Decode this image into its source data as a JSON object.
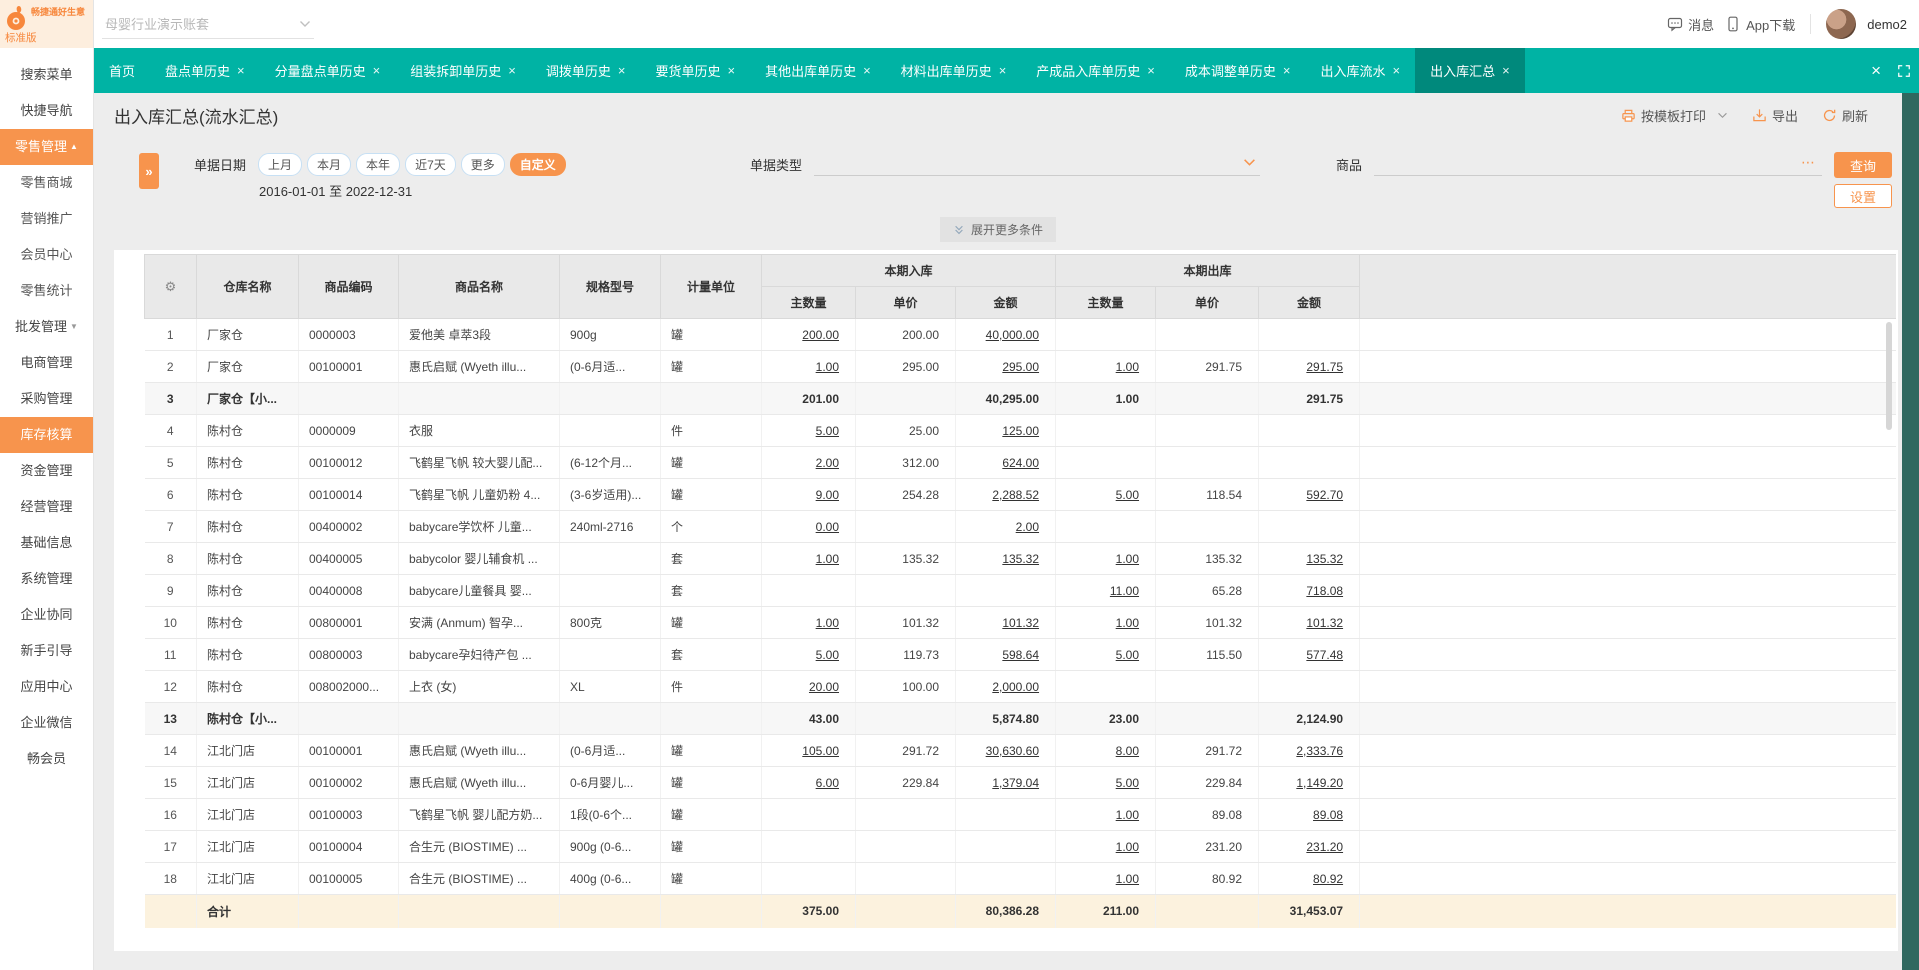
{
  "brand": {
    "name": "畅捷通好生意",
    "edition": "标准版"
  },
  "topbar": {
    "account_set": "母婴行业演示账套",
    "messages_label": "消息",
    "app_download_label": "App下载",
    "username": "demo2"
  },
  "tabs": [
    {
      "label": "首页",
      "closable": false,
      "active": false
    },
    {
      "label": "盘点单历史",
      "closable": true,
      "active": false
    },
    {
      "label": "分量盘点单历史",
      "closable": true,
      "active": false
    },
    {
      "label": "组装拆卸单历史",
      "closable": true,
      "active": false
    },
    {
      "label": "调拨单历史",
      "closable": true,
      "active": false
    },
    {
      "label": "要货单历史",
      "closable": true,
      "active": false
    },
    {
      "label": "其他出库单历史",
      "closable": true,
      "active": false
    },
    {
      "label": "材料出库单历史",
      "closable": true,
      "active": false
    },
    {
      "label": "产成品入库单历史",
      "closable": true,
      "active": false
    },
    {
      "label": "成本调整单历史",
      "closable": true,
      "active": false
    },
    {
      "label": "出入库流水",
      "closable": true,
      "active": false
    },
    {
      "label": "出入库汇总",
      "closable": true,
      "active": true
    }
  ],
  "sidebar": {
    "items": [
      {
        "label": "搜索菜单",
        "style": "item",
        "arrow": ""
      },
      {
        "label": "快捷导航",
        "style": "item",
        "arrow": ""
      },
      {
        "label": "零售管理",
        "style": "active",
        "arrow": "up"
      },
      {
        "label": "零售商城",
        "style": "sub",
        "arrow": ""
      },
      {
        "label": "营销推广",
        "style": "sub",
        "arrow": ""
      },
      {
        "label": "会员中心",
        "style": "sub",
        "arrow": ""
      },
      {
        "label": "零售统计",
        "style": "sub",
        "arrow": ""
      },
      {
        "label": "批发管理",
        "style": "item",
        "arrow": "down"
      },
      {
        "label": "电商管理",
        "style": "item",
        "arrow": ""
      },
      {
        "label": "采购管理",
        "style": "item",
        "arrow": ""
      },
      {
        "label": "库存核算",
        "style": "active",
        "arrow": ""
      },
      {
        "label": "资金管理",
        "style": "item",
        "arrow": ""
      },
      {
        "label": "经营管理",
        "style": "item",
        "arrow": ""
      },
      {
        "label": "基础信息",
        "style": "item",
        "arrow": ""
      },
      {
        "label": "系统管理",
        "style": "item",
        "arrow": ""
      },
      {
        "label": "企业协同",
        "style": "item",
        "arrow": ""
      },
      {
        "label": "新手引导",
        "style": "item",
        "arrow": ""
      },
      {
        "label": "应用中心",
        "style": "item",
        "arrow": ""
      },
      {
        "label": "企业微信",
        "style": "item",
        "arrow": ""
      },
      {
        "label": "畅会员",
        "style": "item",
        "arrow": ""
      }
    ]
  },
  "page": {
    "title": "出入库汇总(流水汇总)",
    "toolbar": {
      "print": "按模板打印",
      "export": "导出",
      "refresh": "刷新"
    }
  },
  "filters": {
    "date_label": "单据日期",
    "date_quick": [
      "上月",
      "本月",
      "本年",
      "近7天",
      "更多"
    ],
    "date_custom": "自定义",
    "date_range": "2016-01-01 至 2022-12-31",
    "doc_type_label": "单据类型",
    "product_label": "商品",
    "query_button": "查询",
    "settings_button": "设置",
    "expand_more": "展开更多条件"
  },
  "table": {
    "columns": [
      "仓库名称",
      "商品编码",
      "商品名称",
      "规格型号",
      "计量单位"
    ],
    "group_in": "本期入库",
    "group_out": "本期出库",
    "sub_columns": [
      "主数量",
      "单价",
      "金额"
    ],
    "rows": [
      {
        "no": "1",
        "warehouse": "厂家仓",
        "code": "0000003",
        "name": "爱他美 卓萃3段",
        "spec": "900g",
        "unit": "罐",
        "in_qty": "200.00",
        "in_price": "200.00",
        "in_amt": "40,000.00",
        "out_qty": "",
        "out_price": "",
        "out_amt": "",
        "row_type": "data"
      },
      {
        "no": "2",
        "warehouse": "厂家仓",
        "code": "00100001",
        "name": "惠氏启赋 (Wyeth illu...",
        "spec": "(0-6月适...",
        "unit": "罐",
        "in_qty": "1.00",
        "in_price": "295.00",
        "in_amt": "295.00",
        "out_qty": "1.00",
        "out_price": "291.75",
        "out_amt": "291.75",
        "row_type": "data"
      },
      {
        "no": "3",
        "warehouse": "厂家仓【小...",
        "code": "",
        "name": "",
        "spec": "",
        "unit": "",
        "in_qty": "201.00",
        "in_price": "",
        "in_amt": "40,295.00",
        "out_qty": "1.00",
        "out_price": "",
        "out_amt": "291.75",
        "row_type": "subtotal"
      },
      {
        "no": "4",
        "warehouse": "陈村仓",
        "code": "0000009",
        "name": "衣服",
        "spec": "",
        "unit": "件",
        "in_qty": "5.00",
        "in_price": "25.00",
        "in_amt": "125.00",
        "out_qty": "",
        "out_price": "",
        "out_amt": "",
        "row_type": "data"
      },
      {
        "no": "5",
        "warehouse": "陈村仓",
        "code": "00100012",
        "name": "飞鹤星飞帆 较大婴儿配...",
        "spec": "(6-12个月...",
        "unit": "罐",
        "in_qty": "2.00",
        "in_price": "312.00",
        "in_amt": "624.00",
        "out_qty": "",
        "out_price": "",
        "out_amt": "",
        "row_type": "data"
      },
      {
        "no": "6",
        "warehouse": "陈村仓",
        "code": "00100014",
        "name": "飞鹤星飞帆 儿童奶粉 4...",
        "spec": "(3-6岁适用)...",
        "unit": "罐",
        "in_qty": "9.00",
        "in_price": "254.28",
        "in_amt": "2,288.52",
        "out_qty": "5.00",
        "out_price": "118.54",
        "out_amt": "592.70",
        "row_type": "data"
      },
      {
        "no": "7",
        "warehouse": "陈村仓",
        "code": "00400002",
        "name": "babycare学饮杯 儿童...",
        "spec": "240ml-2716",
        "unit": "个",
        "in_qty": "0.00",
        "in_price": "",
        "in_amt": "2.00",
        "out_qty": "",
        "out_price": "",
        "out_amt": "",
        "row_type": "data"
      },
      {
        "no": "8",
        "warehouse": "陈村仓",
        "code": "00400005",
        "name": "babycolor 婴儿辅食机 ...",
        "spec": "",
        "unit": "套",
        "in_qty": "1.00",
        "in_price": "135.32",
        "in_amt": "135.32",
        "out_qty": "1.00",
        "out_price": "135.32",
        "out_amt": "135.32",
        "row_type": "data"
      },
      {
        "no": "9",
        "warehouse": "陈村仓",
        "code": "00400008",
        "name": "babycare儿童餐具 婴...",
        "spec": "",
        "unit": "套",
        "in_qty": "",
        "in_price": "",
        "in_amt": "",
        "out_qty": "11.00",
        "out_price": "65.28",
        "out_amt": "718.08",
        "row_type": "data"
      },
      {
        "no": "10",
        "warehouse": "陈村仓",
        "code": "00800001",
        "name": "安满 (Anmum) 智孕...",
        "spec": "800克",
        "unit": "罐",
        "in_qty": "1.00",
        "in_price": "101.32",
        "in_amt": "101.32",
        "out_qty": "1.00",
        "out_price": "101.32",
        "out_amt": "101.32",
        "row_type": "data"
      },
      {
        "no": "11",
        "warehouse": "陈村仓",
        "code": "00800003",
        "name": "babycare孕妇待产包 ...",
        "spec": "",
        "unit": "套",
        "in_qty": "5.00",
        "in_price": "119.73",
        "in_amt": "598.64",
        "out_qty": "5.00",
        "out_price": "115.50",
        "out_amt": "577.48",
        "row_type": "data"
      },
      {
        "no": "12",
        "warehouse": "陈村仓",
        "code": "008002000...",
        "name": "上衣 (女)",
        "spec": "XL",
        "unit": "件",
        "in_qty": "20.00",
        "in_price": "100.00",
        "in_amt": "2,000.00",
        "out_qty": "",
        "out_price": "",
        "out_amt": "",
        "row_type": "data"
      },
      {
        "no": "13",
        "warehouse": "陈村仓【小...",
        "code": "",
        "name": "",
        "spec": "",
        "unit": "",
        "in_qty": "43.00",
        "in_price": "",
        "in_amt": "5,874.80",
        "out_qty": "23.00",
        "out_price": "",
        "out_amt": "2,124.90",
        "row_type": "subtotal"
      },
      {
        "no": "14",
        "warehouse": "江北门店",
        "code": "00100001",
        "name": "惠氏启赋 (Wyeth illu...",
        "spec": "(0-6月适...",
        "unit": "罐",
        "in_qty": "105.00",
        "in_price": "291.72",
        "in_amt": "30,630.60",
        "out_qty": "8.00",
        "out_price": "291.72",
        "out_amt": "2,333.76",
        "row_type": "data"
      },
      {
        "no": "15",
        "warehouse": "江北门店",
        "code": "00100002",
        "name": "惠氏启赋 (Wyeth illu...",
        "spec": "0-6月婴儿...",
        "unit": "罐",
        "in_qty": "6.00",
        "in_price": "229.84",
        "in_amt": "1,379.04",
        "out_qty": "5.00",
        "out_price": "229.84",
        "out_amt": "1,149.20",
        "row_type": "data"
      },
      {
        "no": "16",
        "warehouse": "江北门店",
        "code": "00100003",
        "name": "飞鹤星飞帆 婴儿配方奶...",
        "spec": "1段(0-6个...",
        "unit": "罐",
        "in_qty": "",
        "in_price": "",
        "in_amt": "",
        "out_qty": "1.00",
        "out_price": "89.08",
        "out_amt": "89.08",
        "row_type": "data"
      },
      {
        "no": "17",
        "warehouse": "江北门店",
        "code": "00100004",
        "name": "合生元 (BIOSTIME) ...",
        "spec": "900g (0-6...",
        "unit": "罐",
        "in_qty": "",
        "in_price": "",
        "in_amt": "",
        "out_qty": "1.00",
        "out_price": "231.20",
        "out_amt": "231.20",
        "row_type": "data"
      },
      {
        "no": "18",
        "warehouse": "江北门店",
        "code": "00100005",
        "name": "合生元 (BIOSTIME) ...",
        "spec": "400g (0-6...",
        "unit": "罐",
        "in_qty": "",
        "in_price": "",
        "in_amt": "",
        "out_qty": "1.00",
        "out_price": "80.92",
        "out_amt": "80.92",
        "row_type": "data"
      }
    ],
    "total_row": {
      "label": "合计",
      "in_qty": "375.00",
      "in_amt": "80,386.28",
      "out_qty": "211.00",
      "out_amt": "31,453.07"
    }
  },
  "colors": {
    "accent_orange": "#f7944d",
    "teal": "#00b3a4",
    "teal_dark": "#00897c",
    "total_row_bg": "#fcf2de"
  }
}
